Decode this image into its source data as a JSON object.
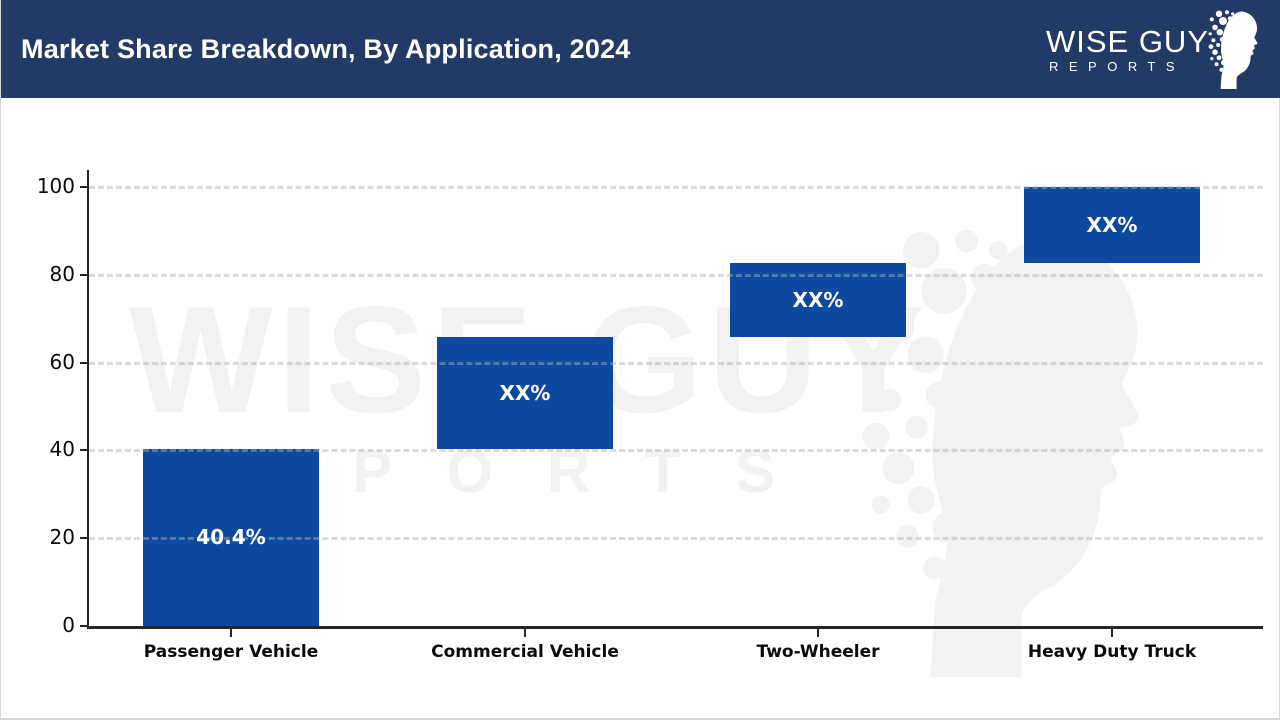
{
  "header": {
    "title": "Market Share Breakdown, By Application, 2024",
    "logo": {
      "line1": "WISE GUY",
      "line2": "REPORTS",
      "head_icon": "dotted-face-profile"
    }
  },
  "watermark": {
    "line1": "WISE GUY",
    "line2": "REPORTS",
    "head_icon": "dotted-face-profile"
  },
  "colors": {
    "header_bg": "#213a66",
    "bar": "#0d4a9f",
    "bar_label_text": "#ffffff",
    "watermark": "#f2f2f4",
    "gridline": "#b0b0b0",
    "axis": "#262626",
    "tick_label": "#0a0a0a"
  },
  "chart_data": {
    "type": "bar",
    "subtype": "stacked-percentage-waterfall",
    "title": "Market Share Breakdown, By Application, 2024",
    "xlabel": "",
    "ylabel": "",
    "categories": [
      "Passenger Vehicle",
      "Commercial Vehicle",
      "Two-Wheeler",
      "Heavy Duty Truck"
    ],
    "bars": [
      {
        "category": "Passenger Vehicle",
        "label": "40.4%",
        "start": 0,
        "end": 40.4
      },
      {
        "category": "Commercial Vehicle",
        "label": "XX%",
        "start": 40.4,
        "end": 65.8
      },
      {
        "category": "Two-Wheeler",
        "label": "XX%",
        "start": 65.8,
        "end": 82.7
      },
      {
        "category": "Heavy Duty Truck",
        "label": "XX%",
        "start": 82.7,
        "end": 100
      }
    ],
    "yticks": [
      0,
      20,
      40,
      60,
      80,
      100
    ],
    "ylim": [
      0,
      105
    ],
    "grid": "dashed-horizontal",
    "legend": null
  }
}
